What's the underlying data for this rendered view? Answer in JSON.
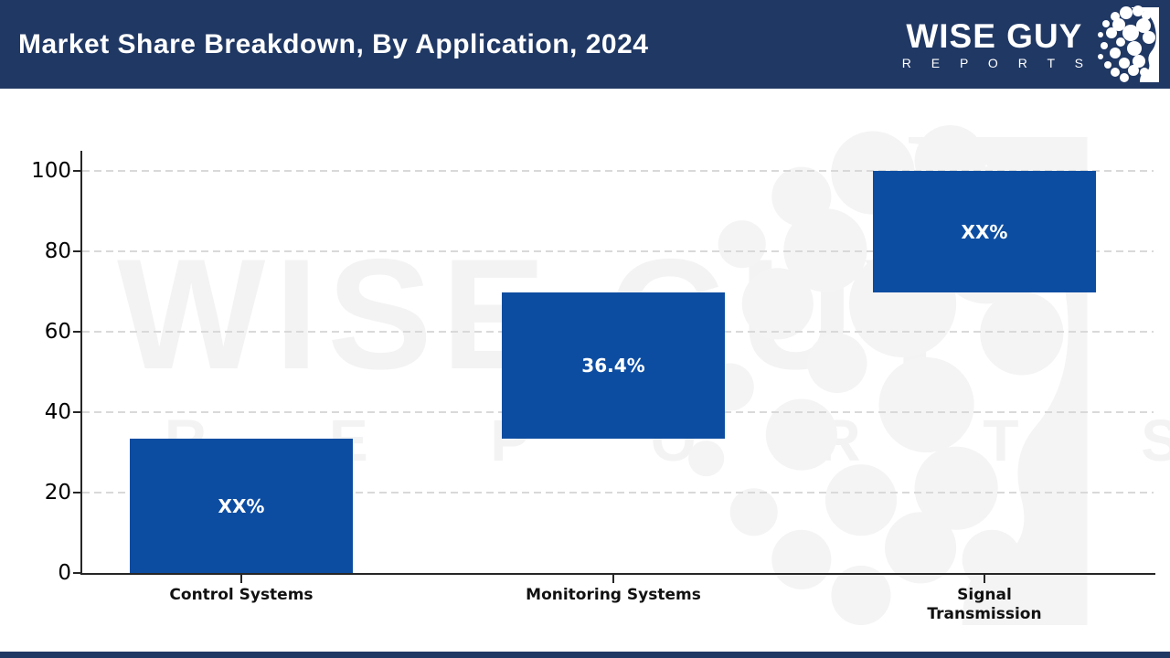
{
  "header": {
    "title": "Market Share Breakdown, By Application, 2024",
    "logo": {
      "line1": "WISE GUY",
      "line2": "R E P O R T S"
    }
  },
  "watermark": {
    "word": "WISE GUY",
    "reports": "R E P O R T S"
  },
  "colors": {
    "header_navy": "#203864",
    "bar_blue": "#0d4da1",
    "gridline_gray": "#d9d9d9",
    "watermark_gray": "#f3f3f3",
    "axis_dark": "#262626",
    "bar_label_white": "#ffffff"
  },
  "chart_data": {
    "type": "bar",
    "subtype": "waterfall-stacked",
    "title": "Market Share Breakdown, By Application, 2024",
    "categories": [
      "Control Systems",
      "Monitoring Systems",
      "Signal\nTransmission"
    ],
    "bars": [
      {
        "category": "Control Systems",
        "start": 0,
        "end": 33.3,
        "height_pct": 33.3,
        "label": "XX%"
      },
      {
        "category": "Monitoring Systems",
        "start": 33.3,
        "end": 69.7,
        "height_pct": 36.4,
        "label": "36.4%"
      },
      {
        "category": "Signal Transmission",
        "start": 69.7,
        "end": 100,
        "height_pct": 30.3,
        "label": "XX%"
      }
    ],
    "xlabel": "",
    "ylabel": "",
    "ylim": [
      0,
      100
    ],
    "yticks": [
      0,
      20,
      40,
      60,
      80,
      100
    ],
    "grid": "horizontal-dashed",
    "legend": "none",
    "bar_color": "#0d4da1",
    "label_color": "#ffffff"
  }
}
